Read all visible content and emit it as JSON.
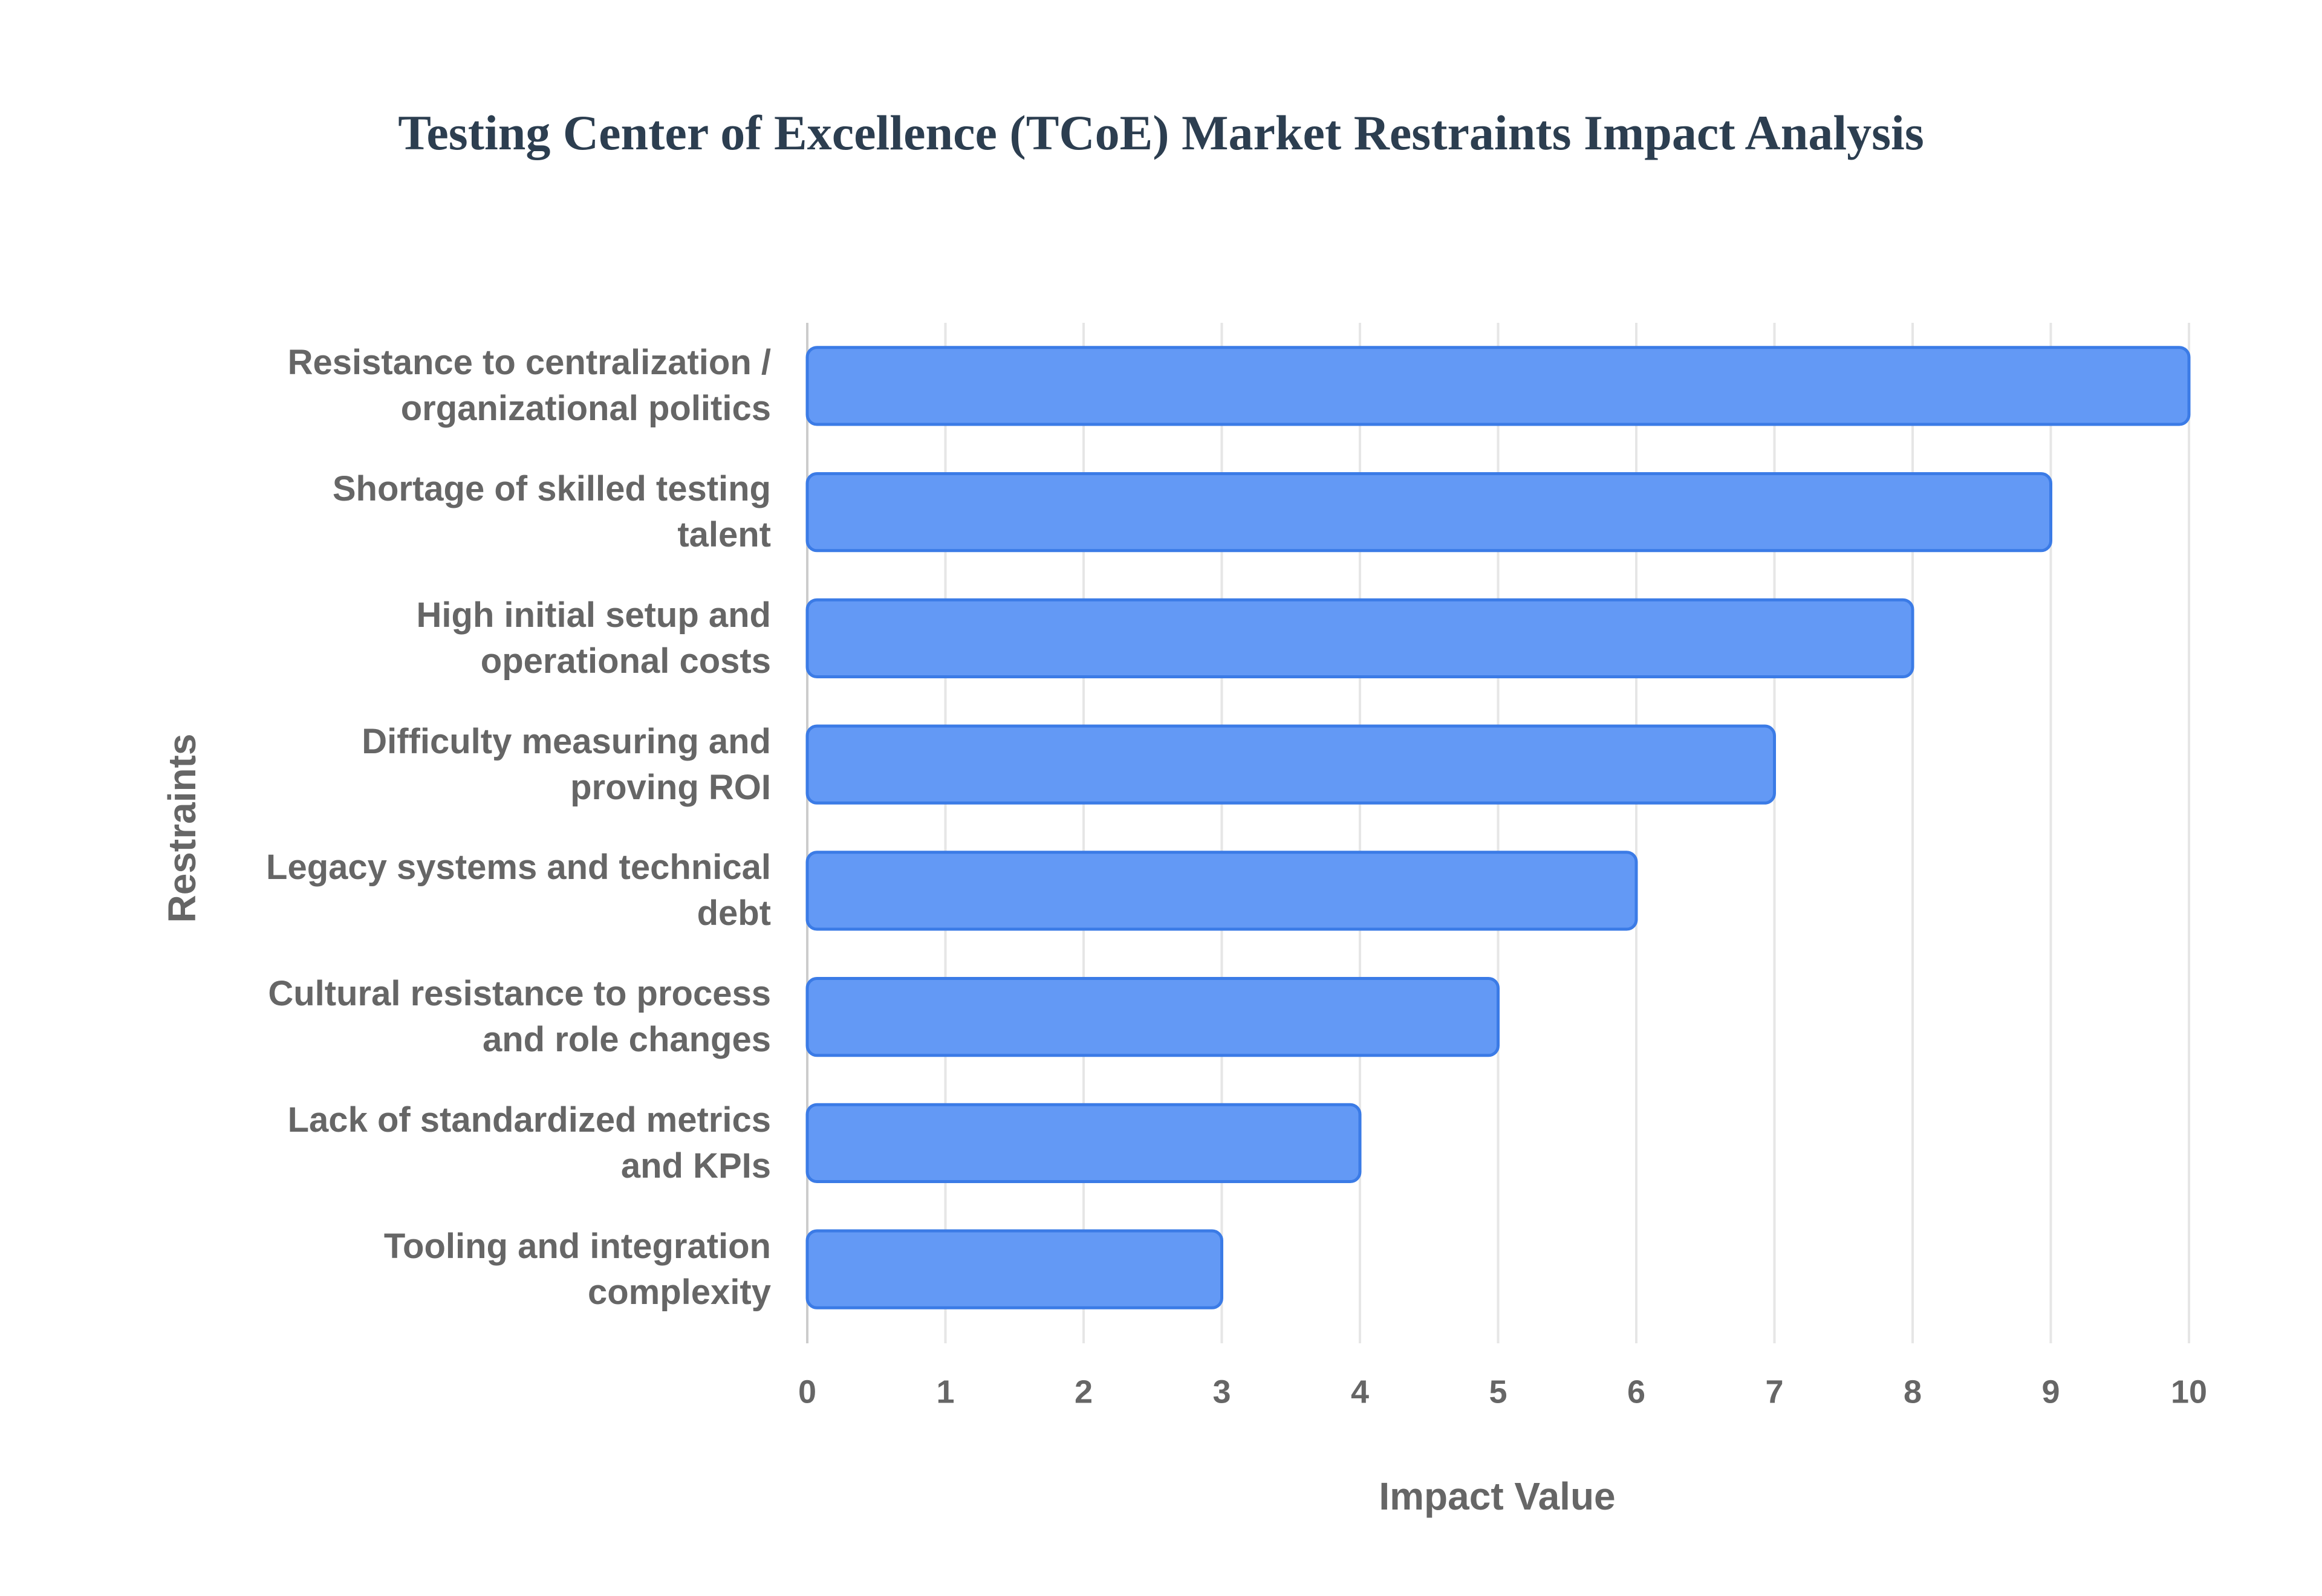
{
  "chart_data": {
    "type": "bar",
    "orientation": "horizontal",
    "title": "Testing Center of Excellence (TCoE) Market Restraints Impact Analysis",
    "x_label": "Impact Value",
    "y_label": "Restraints",
    "categories": [
      "Resistance to centralization / organizational politics",
      "Shortage of skilled testing talent",
      "High initial setup and operational costs",
      "Difficulty measuring and proving ROI",
      "Legacy systems and technical debt",
      "Cultural resistance to process and role changes",
      "Lack of standardized metrics and KPIs",
      "Tooling and integration complexity"
    ],
    "values": [
      10,
      9,
      8,
      7,
      6,
      5,
      4,
      3
    ],
    "color": "#6399f5",
    "edge_color": "#3b7be6",
    "xlim": [
      0,
      10
    ],
    "xticks": [
      0,
      1,
      2,
      3,
      4,
      5,
      6,
      7,
      8,
      9,
      10
    ],
    "grid": true
  }
}
